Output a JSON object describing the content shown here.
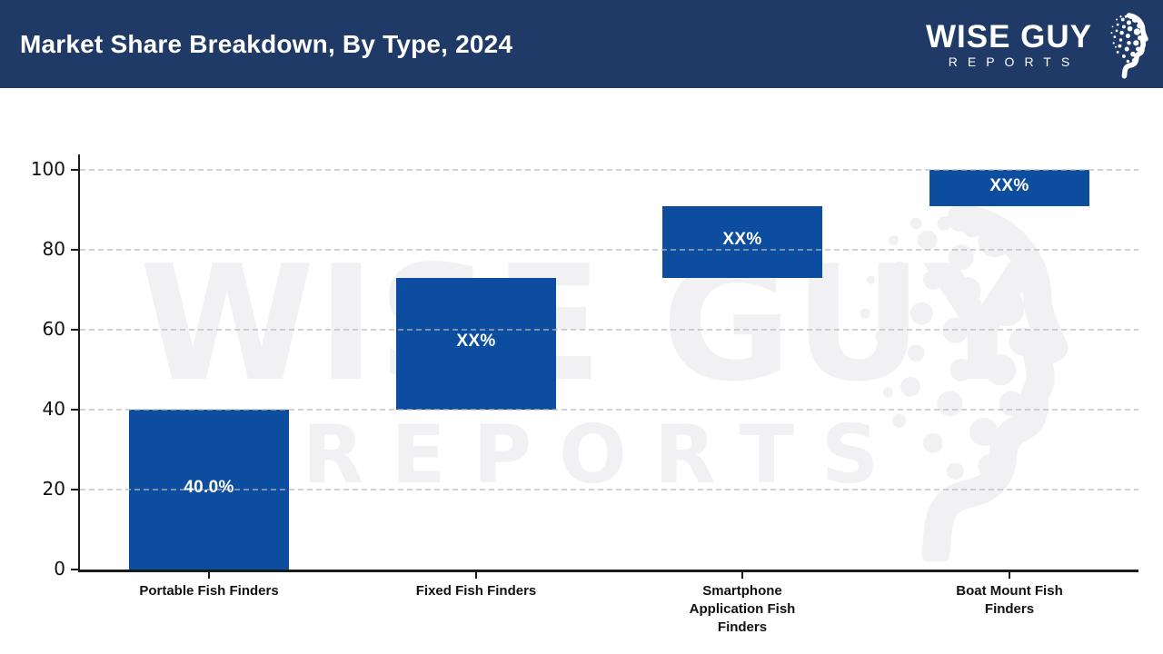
{
  "header": {
    "title": "Market Share Breakdown, By Type, 2024",
    "bg_color": "#1f3a66",
    "logo": {
      "line1": "WISE GUY",
      "line2": "REPORTS"
    }
  },
  "watermark": {
    "line1": "WISE GUY",
    "line2": "REPORTS"
  },
  "chart_data": {
    "type": "bar",
    "subtype": "waterfall",
    "title": "Market Share Breakdown, By Type, 2024",
    "xlabel": "",
    "ylabel": "",
    "ylim": [
      0,
      100
    ],
    "y_ticks": [
      0,
      20,
      40,
      60,
      80,
      100
    ],
    "grid": "horizontal dashed",
    "legend": "none",
    "bar_color": "#0c4da0",
    "bar_label_color": "#ffffff",
    "categories": [
      "Portable Fish Finders",
      "Fixed Fish Finders",
      "Smartphone Application Fish Finders",
      "Boat Mount Fish Finders"
    ],
    "segments": [
      {
        "category": "Portable Fish Finders",
        "start": 0,
        "end": 40,
        "value": 40,
        "label": "40.0%"
      },
      {
        "category": "Fixed Fish Finders",
        "start": 40,
        "end": 73,
        "value": 33,
        "label": "XX%"
      },
      {
        "category": "Smartphone Application Fish Finders",
        "start": 73,
        "end": 91,
        "value": 18,
        "label": "XX%"
      },
      {
        "category": "Boat Mount Fish Finders",
        "start": 91,
        "end": 100,
        "value": 9,
        "label": "XX%"
      }
    ]
  }
}
